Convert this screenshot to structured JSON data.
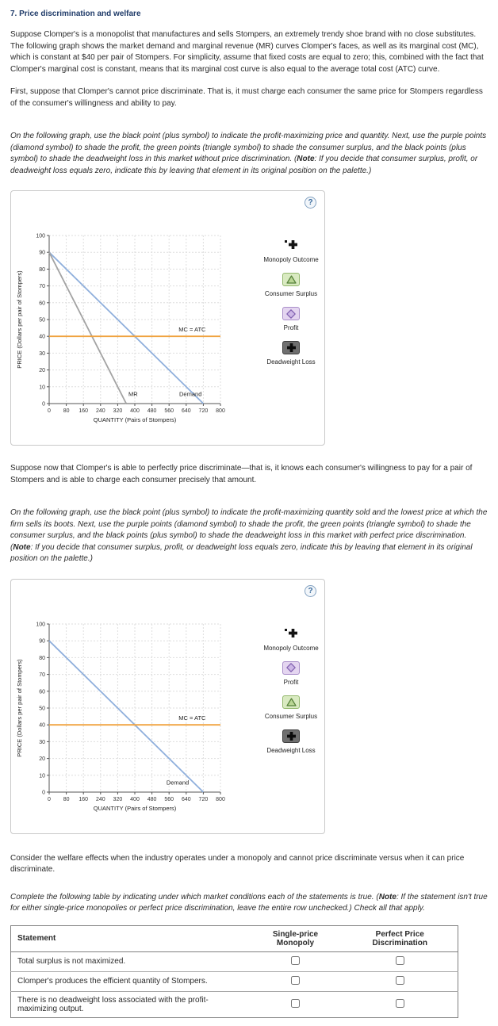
{
  "page_title": "7. Price discrimination and welfare",
  "paragraphs": {
    "intro": "Suppose Clomper's is a monopolist that manufactures and sells Stompers, an extremely trendy shoe brand with no close substitutes. The following graph shows the market demand and marginal revenue (MR) curves Clomper's faces, as well as its marginal cost (MC), which is constant at $40 per pair of Stompers. For simplicity, assume that fixed costs are equal to zero; this, combined with the fact that Clomper's marginal cost is constant, means that its marginal cost curve is also equal to the average total cost (ATC) curve.",
    "single_price_setup": "First, suppose that Clomper's cannot price discriminate. That is, it must charge each consumer the same price for Stompers regardless of the consumer's willingness and ability to pay.",
    "perfect_discrimination_setup": "Suppose now that Clomper's is able to perfectly price discriminate—that is, it knows each consumer's willingness to pay for a pair of Stompers and is able to charge each consumer precisely that amount.",
    "welfare_comparison": "Consider the welfare effects when the industry operates under a monopoly and cannot price discriminate versus when it can price discriminate."
  },
  "instructions": {
    "graph1": {
      "pre": "On the following graph, use the black point (plus symbol) to indicate the profit-maximizing price and quantity. Next, use the purple points (diamond symbol) to shade the profit, the green points (triangle symbol) to shade the consumer surplus, and the black points (plus symbol) to shade the deadweight loss in this market without price discrimination. (",
      "note_label": "Note",
      "note_rest": ": If you decide that consumer surplus, profit, or deadweight loss equals zero, indicate this by leaving that element in its original position on the palette.)"
    },
    "graph2": {
      "pre": "On the following graph, use the black point (plus symbol) to indicate the profit-maximizing quantity sold and the lowest price at which the firm sells its boots. Next, use the purple points (diamond symbol) to shade the profit, the green points (triangle symbol) to shade the consumer surplus, and the black points (plus symbol) to shade the deadweight loss in this market with perfect price discrimination. (",
      "note_label": "Note",
      "note_rest": ": If you decide that consumer surplus, profit, or deadweight loss equals zero, indicate this by leaving that element in its original position on the palette.)"
    },
    "table": {
      "pre": "Complete the following table by indicating under which market conditions each of the statements is true. (",
      "note_label": "Note",
      "note_rest": ": If the statement isn't true for either single-price monopolies or perfect price discrimination, leave the entire row unchecked.) Check all that apply."
    }
  },
  "panels": {
    "help_icon": "?",
    "graph1_legend": [
      {
        "label": "Monopoly Outcome",
        "symbol": "black-plus-marker"
      },
      {
        "label": "Consumer Surplus",
        "symbol": "green-triangle-tile"
      },
      {
        "label": "Profit",
        "symbol": "purple-diamond-tile"
      },
      {
        "label": "Deadweight Loss",
        "symbol": "dark-plus-tile"
      }
    ],
    "graph2_legend": [
      {
        "label": "Monopoly Outcome",
        "symbol": "black-plus-marker"
      },
      {
        "label": "Profit",
        "symbol": "purple-diamond-tile"
      },
      {
        "label": "Consumer Surplus",
        "symbol": "green-triangle-tile"
      },
      {
        "label": "Deadweight Loss",
        "symbol": "dark-plus-tile"
      }
    ],
    "palette_colors": {
      "consumer_surplus_fill": "#b9d694",
      "consumer_surplus_tile": "#d9eac1",
      "profit_fill": "#cdb7e6",
      "profit_tile": "#e4d5f0",
      "deadweight_tile": "#6f6f6f",
      "marker": "#141414"
    }
  },
  "table": {
    "headers": [
      "Statement",
      "Single-price Monopoly",
      "Perfect Price Discrimination"
    ],
    "rows": [
      "Total surplus is not maximized.",
      "Clomper's produces the efficient quantity of Stompers.",
      "There is no deadweight loss associated with the profit-maximizing output."
    ],
    "checkbox_state": "unchecked"
  },
  "chart_data": [
    {
      "type": "line",
      "title": "",
      "xlabel": "QUANTITY (Pairs of Stompers)",
      "ylabel": "PRICE (Dollars per pair of Stompers)",
      "xlim": [
        0,
        800
      ],
      "ylim": [
        0,
        100
      ],
      "xticks": [
        0,
        80,
        160,
        240,
        320,
        400,
        480,
        560,
        640,
        720,
        800
      ],
      "yticks": [
        0,
        10,
        20,
        30,
        40,
        50,
        60,
        70,
        80,
        90,
        100
      ],
      "grid": true,
      "legend_position": "right",
      "series": [
        {
          "name": "Demand",
          "points": [
            [
              0,
              90
            ],
            [
              720,
              0
            ]
          ],
          "color": "#8fafdc",
          "label_at": [
            660,
            4.5
          ]
        },
        {
          "name": "MR",
          "points": [
            [
              0,
              90
            ],
            [
              360,
              0
            ]
          ],
          "color": "#a3a3a3",
          "label_at": [
            392,
            4.5
          ]
        },
        {
          "name": "MC = ATC",
          "points": [
            [
              0,
              40
            ],
            [
              800,
              40
            ]
          ],
          "color": "#f0a23e",
          "label_at": [
            668,
            43
          ]
        }
      ]
    },
    {
      "type": "line",
      "title": "",
      "xlabel": "QUANTITY (Pairs of Stompers)",
      "ylabel": "PRICE (Dollars per pair of Stompers)",
      "xlim": [
        0,
        800
      ],
      "ylim": [
        0,
        100
      ],
      "xticks": [
        0,
        80,
        160,
        240,
        320,
        400,
        480,
        560,
        640,
        720,
        800
      ],
      "yticks": [
        0,
        10,
        20,
        30,
        40,
        50,
        60,
        70,
        80,
        90,
        100
      ],
      "grid": true,
      "legend_position": "right",
      "series": [
        {
          "name": "Demand",
          "points": [
            [
              0,
              90
            ],
            [
              720,
              0
            ]
          ],
          "color": "#8fafdc",
          "label_at": [
            600,
            4.5
          ]
        },
        {
          "name": "MC = ATC",
          "points": [
            [
              0,
              40
            ],
            [
              800,
              40
            ]
          ],
          "color": "#f0a23e",
          "label_at": [
            668,
            43
          ]
        }
      ]
    }
  ]
}
